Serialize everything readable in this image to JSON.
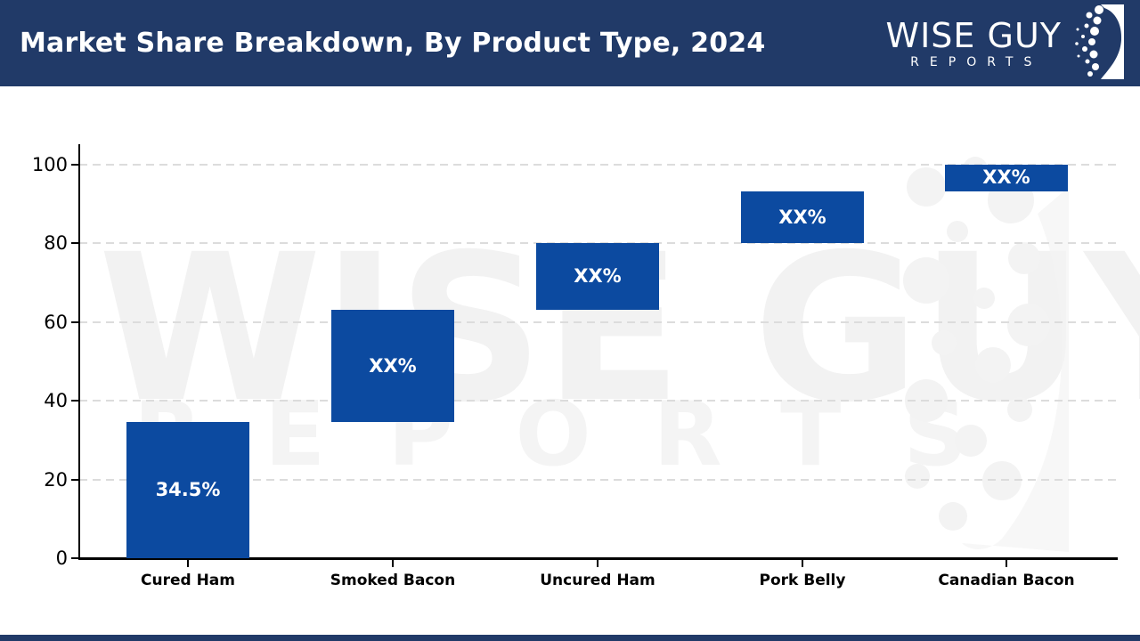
{
  "header": {
    "title": "Market Share Breakdown, By Product Type, 2024",
    "logo_line1": "WISE GUY",
    "logo_line2": "REPORTS",
    "bg_color": "#213A68"
  },
  "watermark": {
    "line1": "WISE GUY",
    "line2": "REPORTS"
  },
  "chart_data": {
    "type": "bar",
    "subtype": "waterfall",
    "title": "Market Share Breakdown, By Product Type, 2024",
    "categories": [
      "Cured Ham",
      "Smoked Bacon",
      "Uncured Ham",
      "Pork Belly",
      "Canadian Bacon"
    ],
    "segments": [
      {
        "category": "Cured Ham",
        "start": 0,
        "end": 34.5,
        "value": 34.5,
        "label": "34.5%"
      },
      {
        "category": "Smoked Bacon",
        "start": 34.5,
        "end": 63,
        "value": 28.5,
        "label": "XX%"
      },
      {
        "category": "Uncured Ham",
        "start": 63,
        "end": 80,
        "value": 17,
        "label": "XX%"
      },
      {
        "category": "Pork Belly",
        "start": 80,
        "end": 93,
        "value": 13,
        "label": "XX%"
      },
      {
        "category": "Canadian Bacon",
        "start": 93,
        "end": 100,
        "value": 7,
        "label": "XX%"
      }
    ],
    "y_ticks": [
      0,
      20,
      40,
      60,
      80,
      100
    ],
    "ylim": [
      0,
      105
    ],
    "xlabel": "",
    "ylabel": "",
    "grid": true,
    "grid_style": "dashed",
    "legend": false,
    "bar_color": "#0C4AA0",
    "value_label_color": "#ffffff"
  }
}
